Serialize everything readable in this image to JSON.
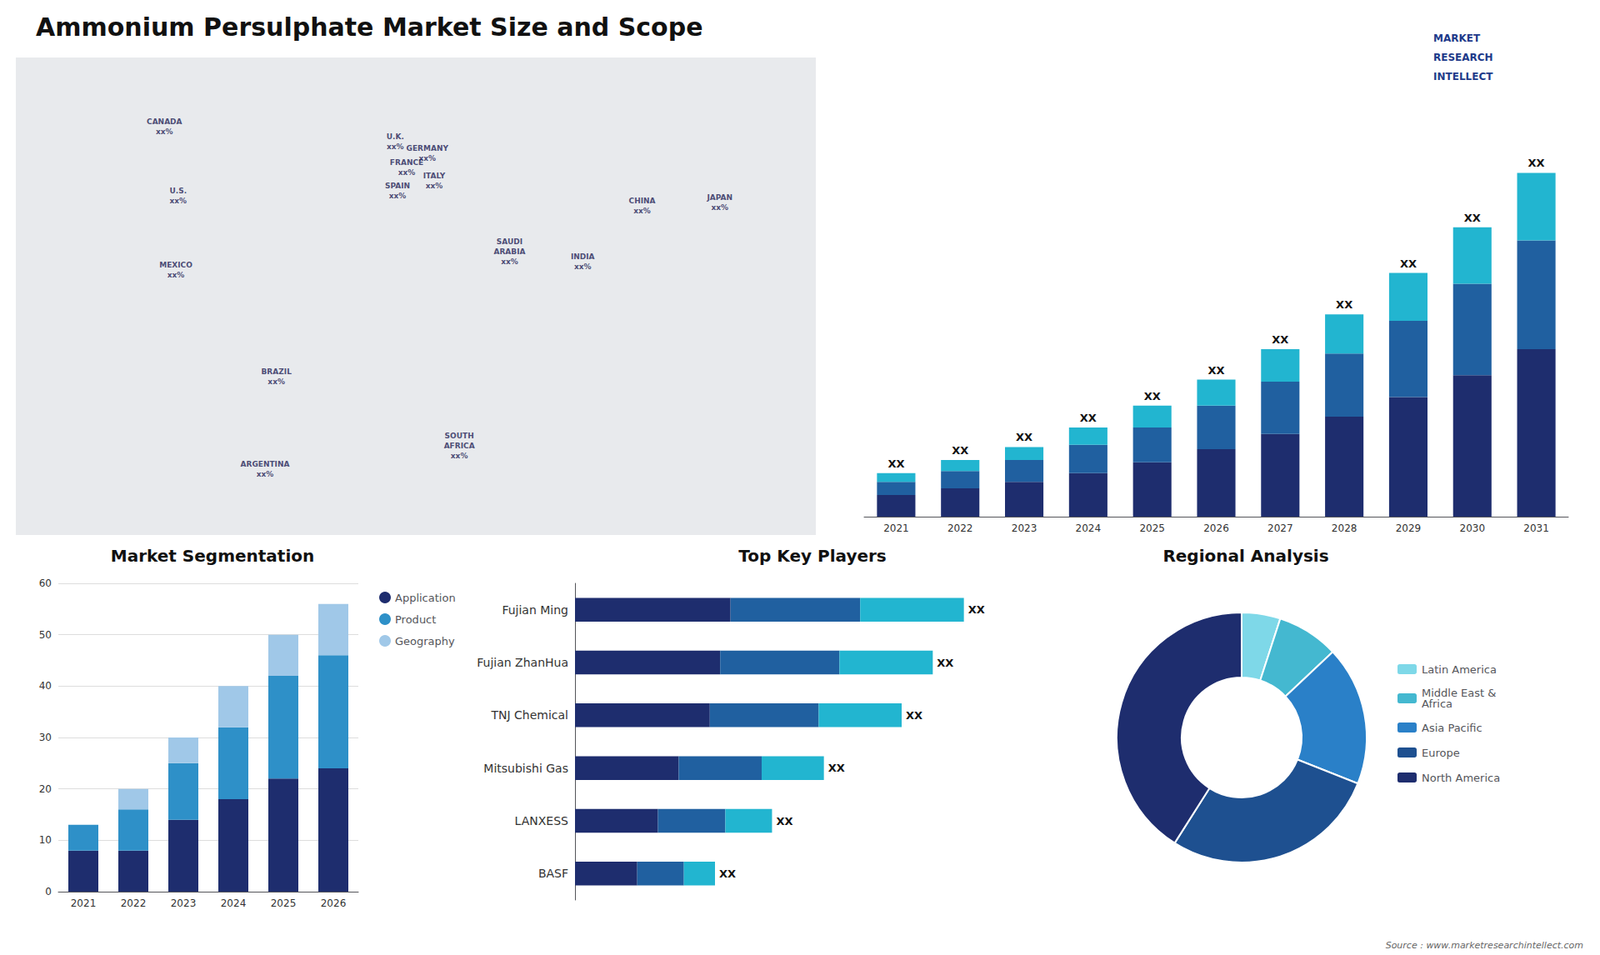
{
  "title": "Ammonium Persulphate Market Size and Scope",
  "annotations": [
    {
      "text": "Source : www.marketresearchintellect.com"
    },
    {
      "text": "MARKET"
    },
    {
      "text": "RESEARCH"
    },
    {
      "text": "INTELLECT"
    }
  ],
  "chart_data": [
    {
      "type": "map",
      "xlim": [
        -170,
        180
      ],
      "ylim": [
        -60,
        85
      ],
      "tick_labels": false,
      "annotations": [
        {
          "text": "CANADA",
          "subtext": "xx%",
          "x": -105,
          "y": 64
        },
        {
          "text": "U.S.",
          "subtext": "xx%",
          "x": -99,
          "y": 43
        },
        {
          "text": "MEXICO",
          "subtext": "xx%",
          "x": -100,
          "y": 20.5
        },
        {
          "text": "BRAZIL",
          "subtext": "xx%",
          "x": -56,
          "y": -12
        },
        {
          "text": "ARGENTINA",
          "subtext": "xx%",
          "x": -61,
          "y": -40
        },
        {
          "text": "U.K.",
          "subtext": "xx%",
          "x": -4,
          "y": 59.5
        },
        {
          "text": "FRANCE",
          "subtext": "xx%",
          "x": 1,
          "y": 51.5
        },
        {
          "text": "SPAIN",
          "subtext": "xx%",
          "x": -3,
          "y": 44.5
        },
        {
          "text": "GERMANY",
          "subtext": "xx%",
          "x": 10,
          "y": 56
        },
        {
          "text": "ITALY",
          "subtext": "xx%",
          "x": 13,
          "y": 47.5
        },
        {
          "text": "SOUTH\nAFRICA",
          "subtext": "xx%",
          "x": 24,
          "y": -33
        },
        {
          "text": "SAUDI\nARABIA",
          "subtext": "xx%",
          "x": 46,
          "y": 26
        },
        {
          "text": "CHINA",
          "subtext": "xx%",
          "x": 104,
          "y": 40
        },
        {
          "text": "INDIA",
          "subtext": "xx%",
          "x": 78,
          "y": 23
        },
        {
          "text": "JAPAN",
          "subtext": "xx%",
          "x": 138,
          "y": 41
        }
      ]
    },
    {
      "type": "bar",
      "stacked": true,
      "categories": [
        "2021",
        "2022",
        "2023",
        "2024",
        "2025",
        "2026",
        "2027",
        "2028",
        "2029",
        "2030",
        "2031"
      ],
      "series": [
        {
          "color": "#1e2d6e",
          "values": [
            1.0,
            1.3,
            1.6,
            2.0,
            2.5,
            3.1,
            3.8,
            4.6,
            5.5,
            6.5,
            7.7
          ]
        },
        {
          "color": "#2060a0",
          "values": [
            0.6,
            0.8,
            1.0,
            1.3,
            1.6,
            2.0,
            2.4,
            2.9,
            3.5,
            4.2,
            5.0
          ]
        },
        {
          "color": "#22b5d0",
          "values": [
            0.4,
            0.5,
            0.6,
            0.8,
            1.0,
            1.2,
            1.5,
            1.8,
            2.2,
            2.6,
            3.1
          ]
        }
      ],
      "ylim": [
        0,
        18
      ],
      "tick_labels": "x",
      "annotations": [
        "XX",
        "XX",
        "XX",
        "XX",
        "XX",
        "XX",
        "XX",
        "XX",
        "XX",
        "XX",
        "XX"
      ]
    },
    {
      "type": "bar",
      "title": "Market Segmentation",
      "stacked": true,
      "categories": [
        "2021",
        "2022",
        "2023",
        "2024",
        "2025",
        "2026"
      ],
      "series": [
        {
          "name": "Application",
          "color": "#1e2d6e",
          "values": [
            8,
            8,
            14,
            18,
            22,
            24
          ]
        },
        {
          "name": "Product",
          "color": "#2e90c8",
          "values": [
            5,
            8,
            11,
            14,
            20,
            22
          ]
        },
        {
          "name": "Geography",
          "color": "#a0c8e8",
          "values": [
            0,
            4,
            5,
            8,
            8,
            10
          ]
        }
      ],
      "ylim": [
        0,
        60
      ],
      "yticks": [
        0,
        10,
        20,
        30,
        40,
        50,
        60
      ],
      "grid": true,
      "legend": "right"
    },
    {
      "type": "bar",
      "title": "Top Key Players",
      "orientation": "horizontal",
      "stacked": true,
      "categories": [
        "Fujian Ming",
        "Fujian ZhanHua",
        "TNJ Chemical",
        "Mitsubishi Gas",
        "LANXESS",
        "BASF"
      ],
      "series": [
        {
          "color": "#1e2d6e",
          "values": [
            3.0,
            2.8,
            2.6,
            2.0,
            1.6,
            1.2
          ]
        },
        {
          "color": "#2060a0",
          "values": [
            2.5,
            2.3,
            2.1,
            1.6,
            1.3,
            0.9
          ]
        },
        {
          "color": "#22b5d0",
          "values": [
            2.0,
            1.8,
            1.6,
            1.2,
            0.9,
            0.6
          ]
        }
      ],
      "xlim": [
        0,
        9
      ],
      "tick_labels": "y",
      "annotations": [
        "XX",
        "XX",
        "XX",
        "XX",
        "XX",
        "XX"
      ]
    },
    {
      "type": "pie",
      "title": "Regional Analysis",
      "categories": [
        "Latin America",
        "Middle East &\nAfrica",
        "Asia Pacific",
        "Europe",
        "North America"
      ],
      "values": [
        5,
        8,
        18,
        28,
        41
      ],
      "colors": [
        "#7ed8e8",
        "#44b8d0",
        "#2a80c8",
        "#1e5090",
        "#1e2d6e"
      ],
      "legend": "right"
    }
  ]
}
